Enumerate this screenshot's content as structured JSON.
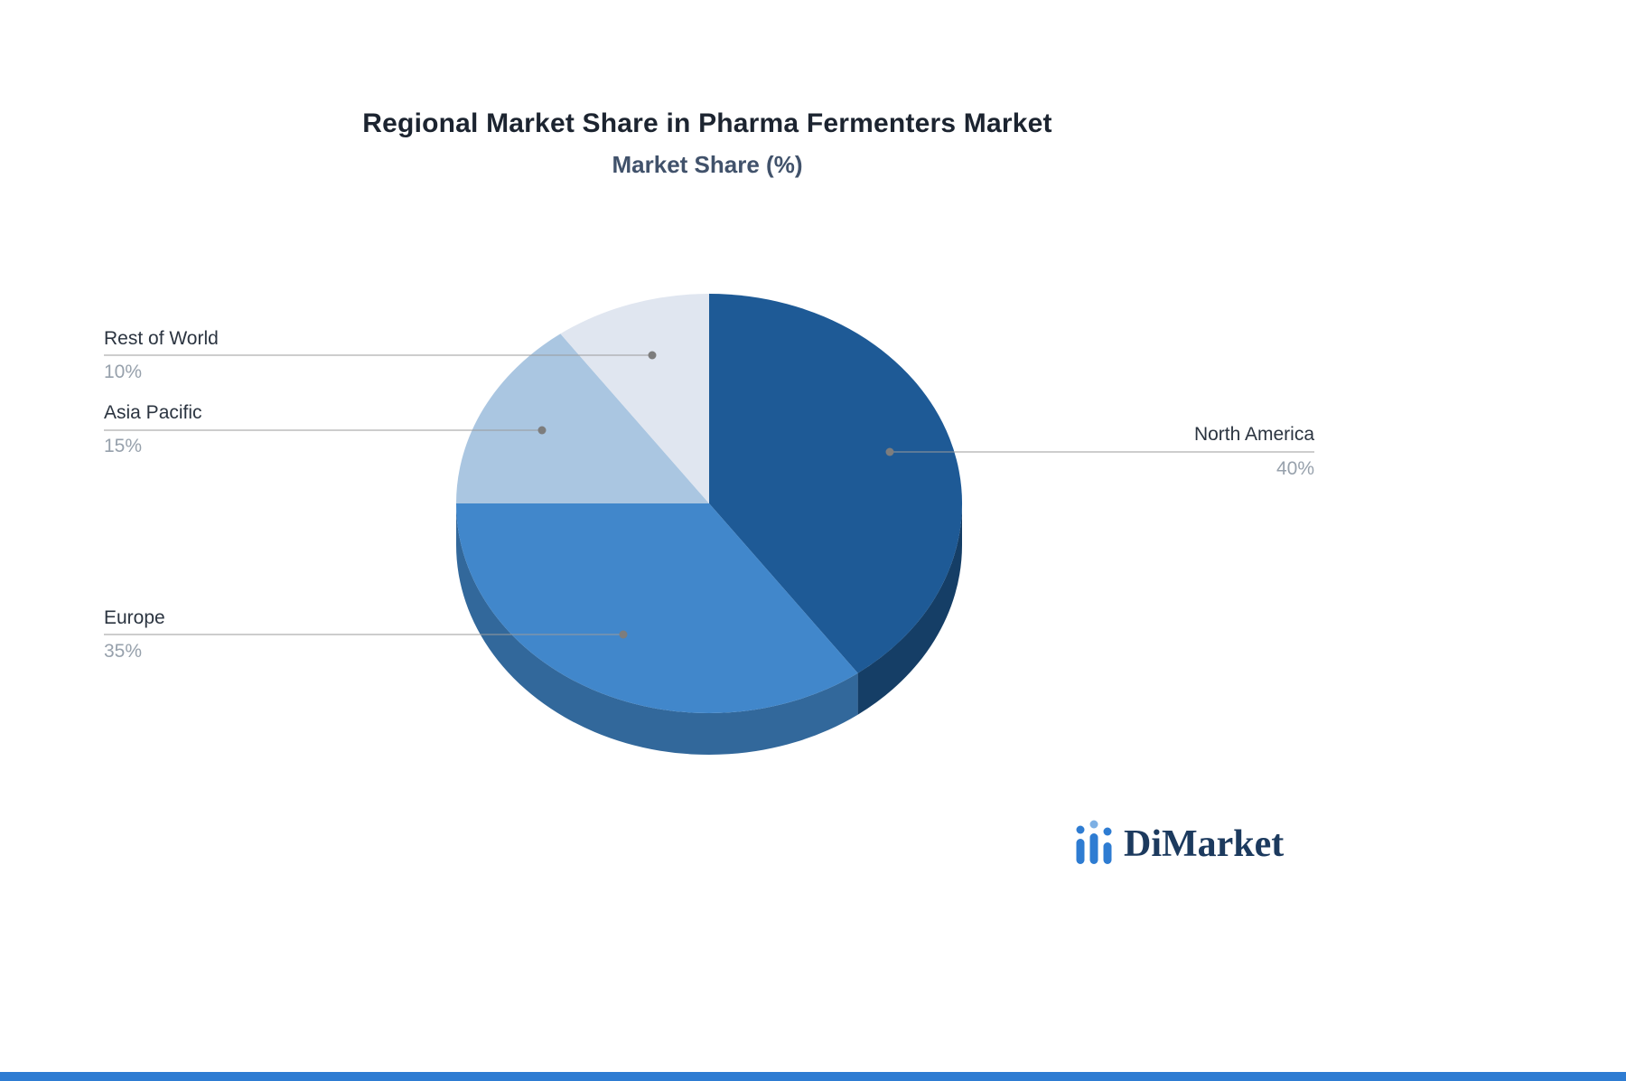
{
  "title": "Regional Market Share in Pharma Fermenters Market",
  "subtitle": "Market Share (%)",
  "chart_data": {
    "type": "pie",
    "style": "3d",
    "title": "Regional Market Share in Pharma Fermenters Market",
    "subtitle": "Market Share (%)",
    "unit": "%",
    "direction": "clockwise",
    "start_angle_deg": -90,
    "labels": [
      "North America",
      "Europe",
      "Asia Pacific",
      "Rest of World"
    ],
    "values": [
      40,
      35,
      15,
      10
    ],
    "colors": [
      "#1e5a96",
      "#4187cb",
      "#aac6e1",
      "#e0e6f0"
    ],
    "side_colors": [
      "#153e66",
      "#32689b",
      "#8fb2d4",
      "#c9d3e2"
    ],
    "legend_position": "none",
    "label_style": "leader-line callouts"
  },
  "callouts": [
    {
      "label": "Rest of World",
      "value": "10%"
    },
    {
      "label": "Asia Pacific",
      "value": "15%"
    },
    {
      "label": "Europe",
      "value": "35%"
    },
    {
      "label": "North America",
      "value": "40%"
    }
  ],
  "logo": {
    "name": "DiMarket"
  },
  "accent_color": "#2e7cd2"
}
